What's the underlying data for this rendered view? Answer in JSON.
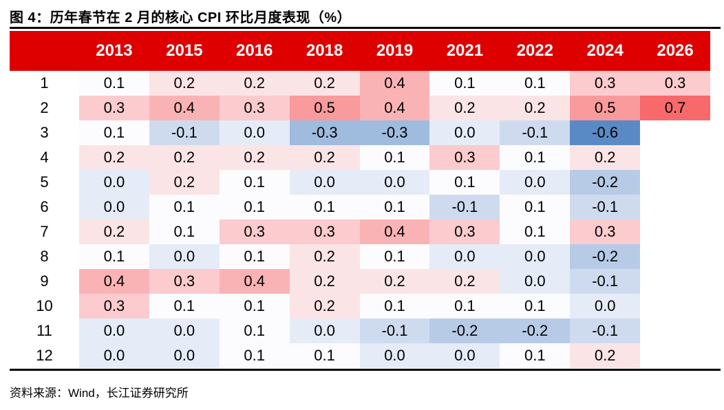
{
  "title": "图 4：历年春节在 2 月的核心 CPI 环比月度表现（%）",
  "source": "资料来源：Wind，长江证券研究所",
  "theme": {
    "header_bg": "#DE0000",
    "header_text": "#FFFFFF",
    "rule_color": "#000000",
    "cell_text": "#000000",
    "empty_cell_bg": "#FFFFFF"
  },
  "chart_data": {
    "type": "heatmap",
    "title": "历年春节在2月的核心CPI环比月度表现（%）",
    "columns": [
      "2013",
      "2015",
      "2016",
      "2018",
      "2019",
      "2021",
      "2022",
      "2024",
      "2026"
    ],
    "rows": [
      "1",
      "2",
      "3",
      "4",
      "5",
      "6",
      "7",
      "8",
      "9",
      "10",
      "11",
      "12"
    ],
    "values": [
      [
        0.1,
        0.2,
        0.2,
        0.2,
        0.4,
        0.1,
        0.1,
        0.3,
        0.3
      ],
      [
        0.3,
        0.4,
        0.3,
        0.5,
        0.4,
        0.2,
        0.2,
        0.5,
        0.7
      ],
      [
        0.1,
        -0.1,
        0.0,
        -0.3,
        -0.3,
        0.0,
        -0.1,
        -0.6,
        null
      ],
      [
        0.2,
        0.2,
        0.2,
        0.2,
        0.1,
        0.3,
        0.1,
        0.2,
        null
      ],
      [
        0.0,
        0.2,
        0.1,
        0.0,
        0.0,
        0.1,
        0.0,
        -0.2,
        null
      ],
      [
        0.0,
        0.1,
        0.1,
        0.1,
        0.1,
        -0.1,
        0.1,
        -0.1,
        null
      ],
      [
        0.2,
        0.1,
        0.3,
        0.3,
        0.4,
        0.3,
        0.1,
        0.3,
        null
      ],
      [
        0.1,
        0.0,
        0.1,
        0.2,
        0.1,
        0.0,
        0.0,
        -0.2,
        null
      ],
      [
        0.4,
        0.3,
        0.4,
        0.2,
        0.2,
        0.2,
        0.0,
        -0.1,
        null
      ],
      [
        0.3,
        0.1,
        0.1,
        0.2,
        0.1,
        0.1,
        0.1,
        0.0,
        null
      ],
      [
        0.0,
        0.0,
        0.1,
        0.0,
        -0.1,
        -0.2,
        -0.2,
        -0.1,
        null
      ],
      [
        0.0,
        0.0,
        0.1,
        0.1,
        0.0,
        0.0,
        0.1,
        0.2,
        null
      ]
    ],
    "value_format": "one_decimal",
    "colorscale": {
      "min": -0.6,
      "mid": 0.1,
      "max": 0.7,
      "min_color": "#5A8AC6",
      "mid_color": "#FCFCFF",
      "max_color": "#F8696B"
    },
    "legend": "none",
    "grid": false
  }
}
